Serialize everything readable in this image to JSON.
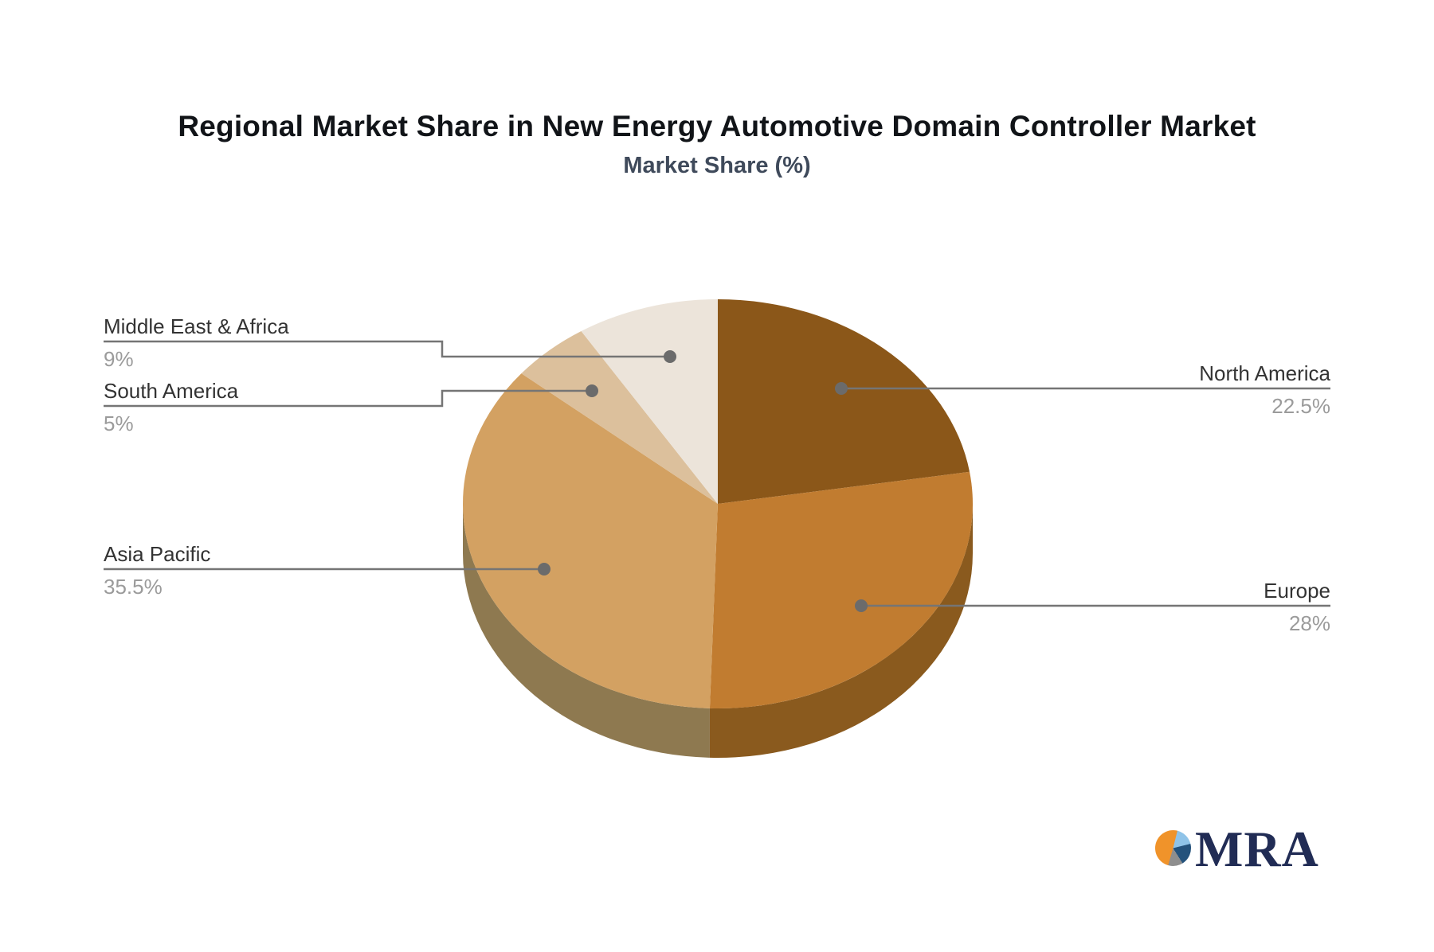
{
  "title": "Regional Market Share in New Energy Automotive Domain Controller Market",
  "subtitle": "Market Share (%)",
  "chart_data": {
    "type": "pie",
    "style": "3d",
    "title": "Regional Market Share in New Energy Automotive Domain Controller Market",
    "subtitle": "Market Share (%)",
    "unit": "%",
    "start_angle_deg": 0,
    "direction": "clockwise",
    "legend": false,
    "slices": [
      {
        "label": "North America",
        "value": 22.5,
        "value_label": "22.5%",
        "color": "#8b5719"
      },
      {
        "label": "Europe",
        "value": 28,
        "value_label": "28%",
        "color": "#c17c30",
        "side_color": "#8a5a1e"
      },
      {
        "label": "Asia Pacific",
        "value": 35.5,
        "value_label": "35.5%",
        "color": "#d3a162",
        "side_color": "#8e7950"
      },
      {
        "label": "South America",
        "value": 5,
        "value_label": "5%",
        "color": "#dcc09c"
      },
      {
        "label": "Middle East & Africa",
        "value": 9,
        "value_label": "9%",
        "color": "#ece4da"
      }
    ],
    "leader_line_color": "#757575",
    "label_name_color": "#333333",
    "label_value_color": "#9b9b9b"
  },
  "logo": {
    "text": "MRA",
    "text_color": "#212c55",
    "icon_colors": {
      "orange": "#f0932a",
      "light_blue": "#8fc3e8",
      "navy": "#24527c",
      "gray": "#8e8e8e"
    }
  }
}
